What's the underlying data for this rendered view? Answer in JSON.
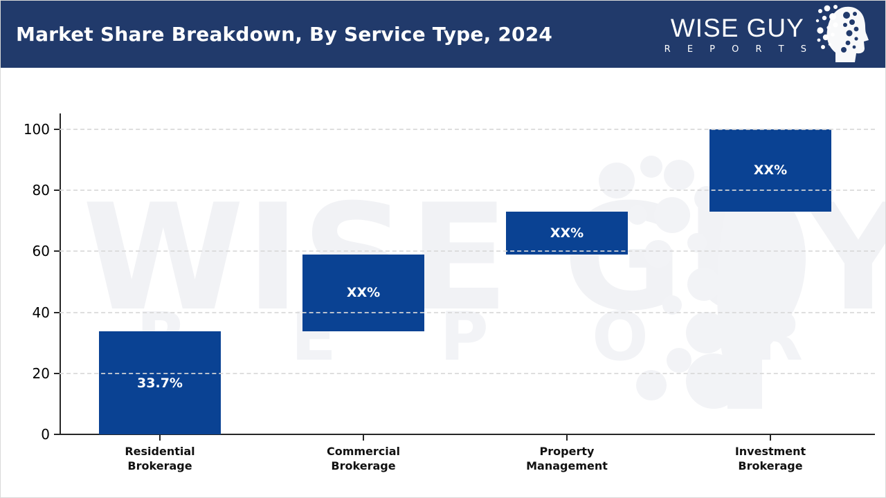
{
  "header": {
    "title": "Market Share Breakdown, By Service Type, 2024",
    "brand": {
      "name": "WISE GUY",
      "sub": "R E P O R T S"
    }
  },
  "watermark": {
    "line1": "WISE GUY",
    "line2": "R E P O R T S"
  },
  "chart_data": {
    "type": "bar",
    "subtype": "waterfall-floating-bars",
    "title": "Market Share Breakdown, By Service Type, 2024",
    "categories": [
      "Residential\nBrokerage",
      "Commercial\nBrokerage",
      "Property\nManagement",
      "Investment\nBrokerage"
    ],
    "segments": [
      {
        "category": "Residential Brokerage",
        "start": 0,
        "end": 33.7,
        "label": "33.7%"
      },
      {
        "category": "Commercial Brokerage",
        "start": 33.7,
        "end": 59,
        "label": "XX%"
      },
      {
        "category": "Property Management",
        "start": 59,
        "end": 73,
        "label": "XX%"
      },
      {
        "category": "Investment Brokerage",
        "start": 73,
        "end": 100,
        "label": "XX%"
      }
    ],
    "xlabel": "",
    "ylabel": "",
    "ylim": [
      0,
      100
    ],
    "yticks": [
      0,
      20,
      40,
      60,
      80,
      100
    ],
    "grid": "horizontal-dashed",
    "legend": "none",
    "bar_color": "#0a4293",
    "bar_label_color": "#ffffff"
  },
  "colors": {
    "header_bg": "#213a6b",
    "bar": "#0a4293",
    "grid": "#d9d9d9",
    "axis": "#262626",
    "watermark": "#f1f2f5"
  }
}
